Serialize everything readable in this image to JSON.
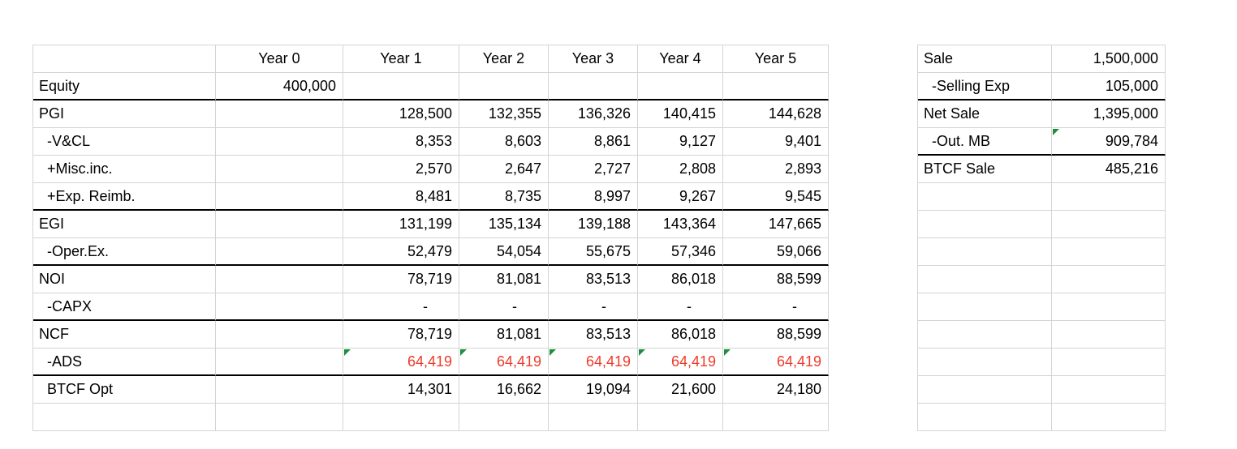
{
  "colors": {
    "background": "#ffffff",
    "text": "#000000",
    "gridline": "#d4d4d4",
    "total_rule": "#000000",
    "negative_text": "#ed3b2a",
    "marker_green": "#1e8e3e"
  },
  "cashflow_table": {
    "headers": [
      "",
      "Year 0",
      "Year 1",
      "Year 2",
      "Year 3",
      "Year 4",
      "Year 5"
    ],
    "rows": [
      {
        "label": "Equity",
        "indent": false,
        "values": [
          "400,000",
          "",
          "",
          "",
          "",
          ""
        ],
        "total_border": true
      },
      {
        "label": "PGI",
        "indent": false,
        "values": [
          "",
          "128,500",
          "132,355",
          "136,326",
          "140,415",
          "144,628"
        ]
      },
      {
        "label": "-V&CL",
        "indent": true,
        "values": [
          "",
          "8,353",
          "8,603",
          "8,861",
          "9,127",
          "9,401"
        ]
      },
      {
        "label": "+Misc.inc.",
        "indent": true,
        "values": [
          "",
          "2,570",
          "2,647",
          "2,727",
          "2,808",
          "2,893"
        ]
      },
      {
        "label": "+Exp. Reimb.",
        "indent": true,
        "values": [
          "",
          "8,481",
          "8,735",
          "8,997",
          "9,267",
          "9,545"
        ],
        "total_border": true
      },
      {
        "label": "EGI",
        "indent": false,
        "values": [
          "",
          "131,199",
          "135,134",
          "139,188",
          "143,364",
          "147,665"
        ]
      },
      {
        "label": "-Oper.Ex.",
        "indent": true,
        "values": [
          "",
          "52,479",
          "54,054",
          "55,675",
          "57,346",
          "59,066"
        ],
        "total_border": true
      },
      {
        "label": "NOI",
        "indent": false,
        "values": [
          "",
          "78,719",
          "81,081",
          "83,513",
          "86,018",
          "88,599"
        ]
      },
      {
        "label": "-CAPX",
        "indent": true,
        "values": [
          "",
          "-",
          "-",
          "-",
          "-",
          "-"
        ],
        "total_border": true,
        "dash": true
      },
      {
        "label": "NCF",
        "indent": false,
        "values": [
          "",
          "78,719",
          "81,081",
          "83,513",
          "86,018",
          "88,599"
        ]
      },
      {
        "label": "-ADS",
        "indent": true,
        "values": [
          "",
          "64,419",
          "64,419",
          "64,419",
          "64,419",
          "64,419"
        ],
        "total_border": true,
        "red": true,
        "markers": [
          1,
          2,
          3,
          4,
          5
        ]
      },
      {
        "label": "BTCF Opt",
        "indent": true,
        "values": [
          "",
          "14,301",
          "16,662",
          "19,094",
          "21,600",
          "24,180"
        ]
      },
      {
        "label": "",
        "indent": false,
        "values": [
          "",
          "",
          "",
          "",
          "",
          ""
        ]
      }
    ]
  },
  "sale_table": {
    "rows": [
      {
        "label": "Sale",
        "indent": false,
        "value": "1,500,000"
      },
      {
        "label": "-Selling Exp",
        "indent": true,
        "value": "105,000",
        "total_border": true
      },
      {
        "label": "Net Sale",
        "indent": false,
        "value": "1,395,000"
      },
      {
        "label": "-Out. MB",
        "indent": true,
        "value": "909,784",
        "total_border": true,
        "marker": true
      },
      {
        "label": "BTCF Sale",
        "indent": false,
        "value": "485,216"
      },
      {
        "label": "",
        "value": ""
      },
      {
        "label": "",
        "value": ""
      },
      {
        "label": "",
        "value": ""
      },
      {
        "label": "",
        "value": ""
      },
      {
        "label": "",
        "value": ""
      },
      {
        "label": "",
        "value": ""
      },
      {
        "label": "",
        "value": ""
      },
      {
        "label": "",
        "value": ""
      },
      {
        "label": "",
        "value": ""
      }
    ]
  }
}
